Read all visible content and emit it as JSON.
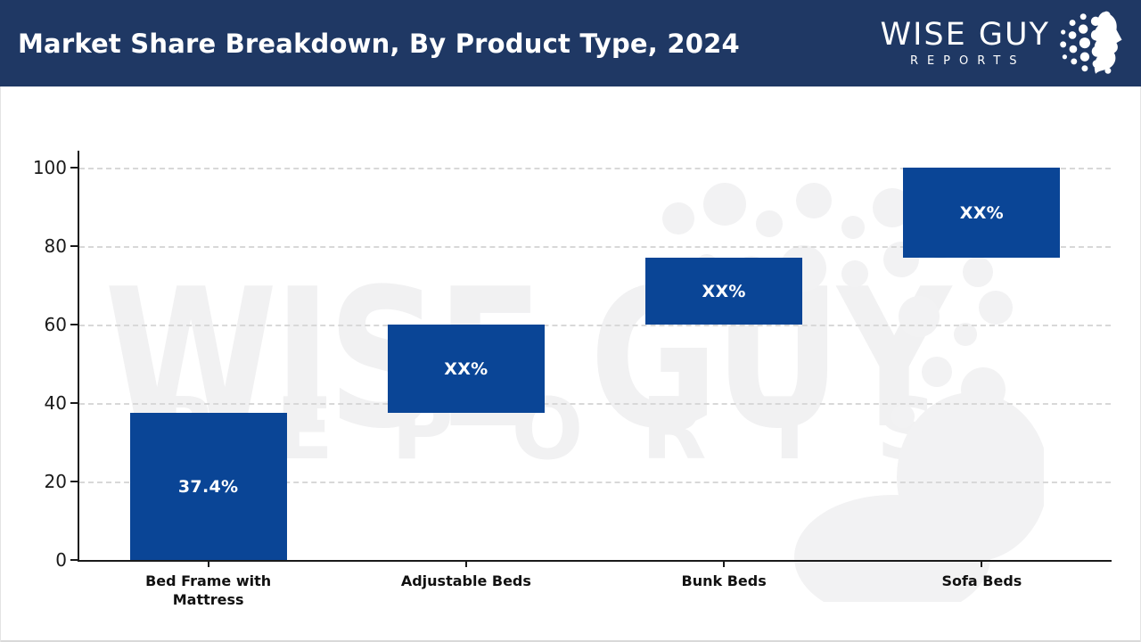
{
  "header": {
    "title": "Market Share Breakdown, By Product Type, 2024",
    "bg_color": "#1f3864",
    "logo": {
      "line1": "WISE GUY",
      "line2": "REPORTS"
    }
  },
  "watermark": {
    "line1": "WISE GUY",
    "line2": "REPORTS"
  },
  "chart_data": {
    "type": "bar",
    "subtype": "waterfall-stacked-breakdown",
    "title": "Market Share Breakdown, By Product Type, 2024",
    "categories": [
      "Bed Frame with Mattress",
      "Adjustable Beds",
      "Bunk Beds",
      "Sofa Beds"
    ],
    "segments": [
      {
        "category": "Bed Frame with Mattress",
        "start": 0,
        "end": 37.4,
        "label": "37.4%"
      },
      {
        "category": "Adjustable Beds",
        "start": 37.4,
        "end": 60,
        "label": "XX%"
      },
      {
        "category": "Bunk Beds",
        "start": 60,
        "end": 77,
        "label": "XX%"
      },
      {
        "category": "Sofa Beds",
        "start": 77,
        "end": 100,
        "label": "XX%"
      }
    ],
    "xlabel": "",
    "ylabel": "",
    "ylim": [
      0,
      100
    ],
    "yticks": [
      0,
      20,
      40,
      60,
      80,
      100
    ],
    "grid": true,
    "gridline_style": "dashed",
    "gridline_color": "#d8d8d8",
    "bar_color": "#0a4596",
    "value_label_color": "#ffffff",
    "legend": false
  }
}
